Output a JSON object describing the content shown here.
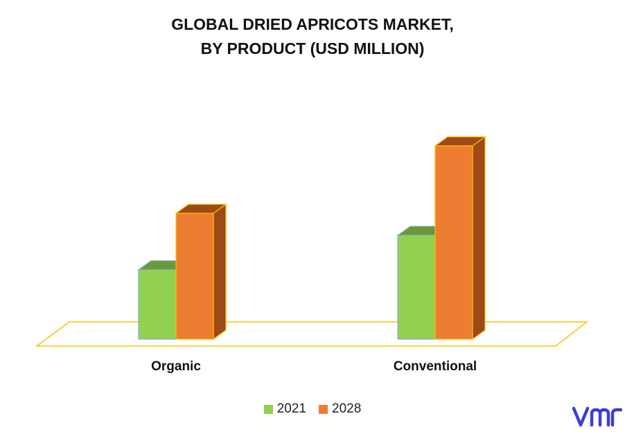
{
  "title_line1": "GLOBAL DRIED APRICOTS MARKET,",
  "title_line2": "BY PRODUCT (USD MILLION)",
  "chart_data": {
    "type": "bar",
    "categories": [
      "Organic",
      "Conventional"
    ],
    "series": [
      {
        "name": "2021",
        "values": [
          107,
          160
        ],
        "color": "#92d050"
      },
      {
        "name": "2028",
        "values": [
          194,
          298
        ],
        "color": "#ed7d31"
      }
    ],
    "ylim": [
      0,
      320
    ],
    "grid": false,
    "legend": "bottom"
  },
  "logo": {
    "icon": "vmr-logo-icon",
    "color": "#3b3fd8"
  }
}
